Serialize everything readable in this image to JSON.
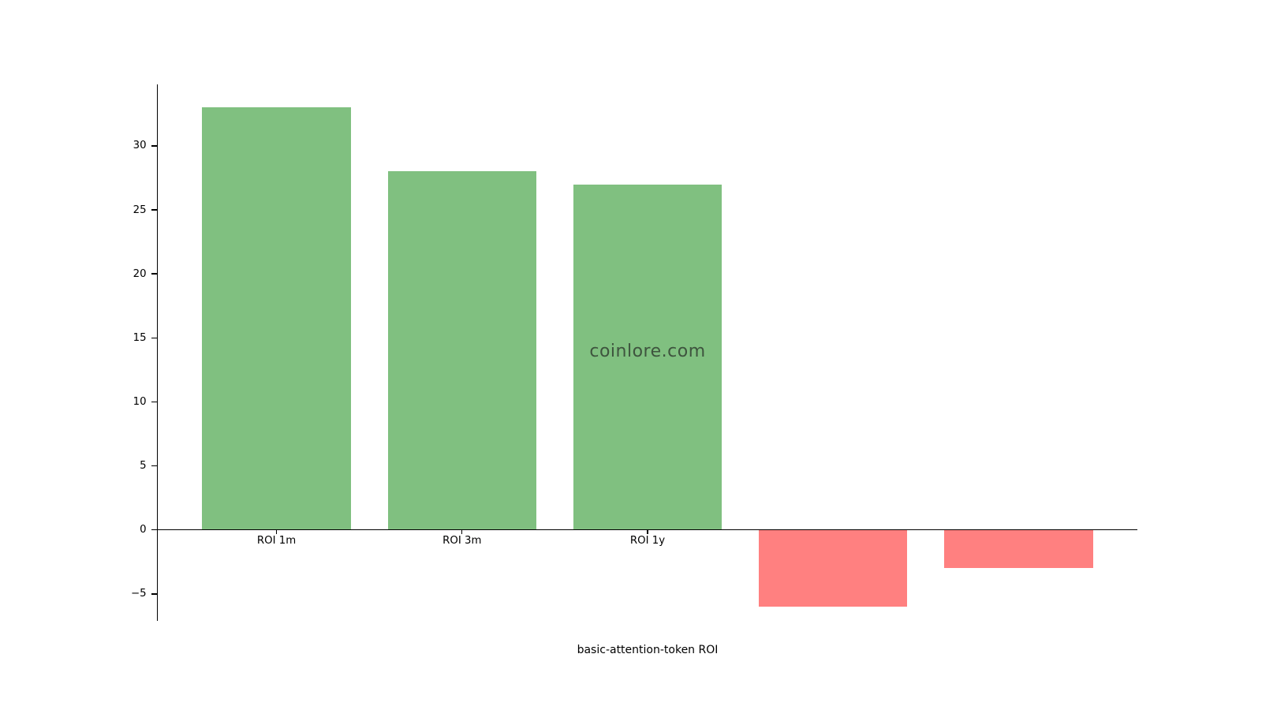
{
  "chart_data": {
    "type": "bar",
    "title": "basic-attention-token ROI",
    "watermark": "coinlore.com",
    "bars": [
      {
        "label": "ROI 1m",
        "value": 33
      },
      {
        "label": "ROI 3m",
        "value": 28
      },
      {
        "label": "ROI 1y",
        "value": 27
      },
      {
        "label": "",
        "value": -6
      },
      {
        "label": "",
        "value": -3
      }
    ],
    "positive_color": "#80c080",
    "negative_color": "#ff8080",
    "yticks": [
      30,
      25,
      20,
      15,
      10,
      5,
      0,
      -5
    ],
    "ylim": [
      -7.1,
      34.8
    ],
    "xlim": [
      -0.64,
      4.64
    ],
    "bar_width": 0.8,
    "grid": false,
    "legend": null,
    "xlabel": "",
    "ylabel": ""
  }
}
